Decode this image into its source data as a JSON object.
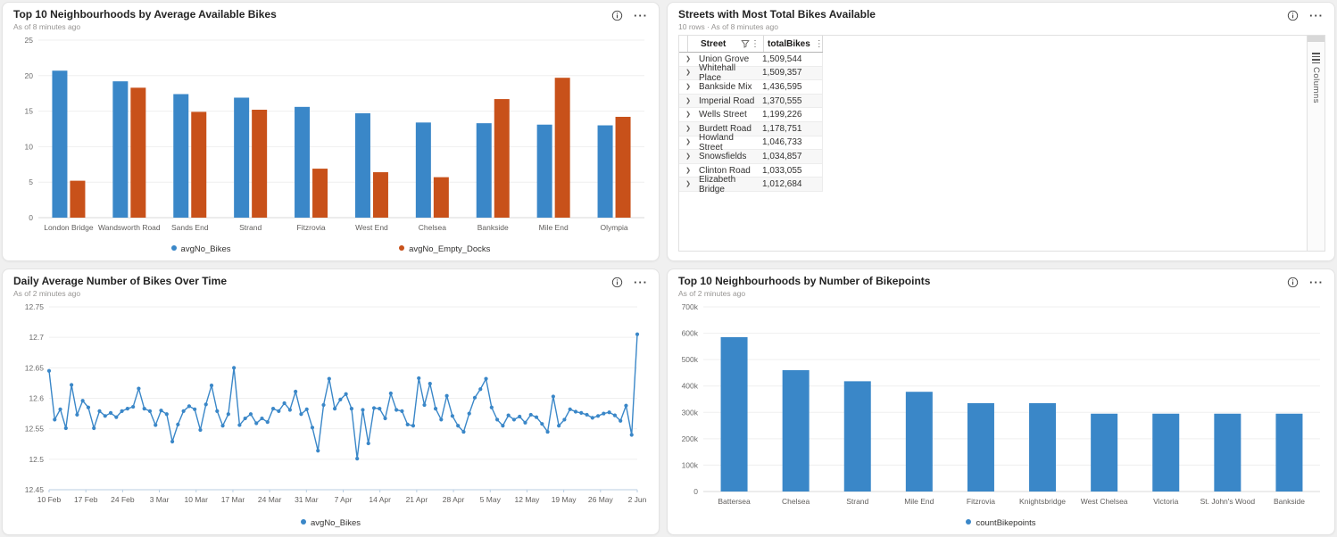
{
  "panels": {
    "top_left": {
      "title": "Top 10 Neighbourhoods by Average Available Bikes",
      "subtitle": "As of 8 minutes ago"
    },
    "top_right": {
      "title": "Streets with Most Total Bikes Available",
      "subtitle": "10 rows · As of 8 minutes ago",
      "table": {
        "columns": [
          "Street",
          "totalBikes"
        ],
        "rows": [
          [
            "Union Grove",
            "1,509,544"
          ],
          [
            "Whitehall Place",
            "1,509,357"
          ],
          [
            "Bankside Mix",
            "1,436,595"
          ],
          [
            "Imperial Road",
            "1,370,555"
          ],
          [
            "Wells Street",
            "1,199,226"
          ],
          [
            "Burdett Road",
            "1,178,751"
          ],
          [
            "Howland Street",
            "1,046,733"
          ],
          [
            "Snowsfields",
            "1,034,857"
          ],
          [
            "Clinton Road",
            "1,033,055"
          ],
          [
            "Elizabeth Bridge",
            "1,012,684"
          ]
        ],
        "columns_panel_label": "Columns"
      }
    },
    "bottom_left": {
      "title": "Daily Average Number of Bikes Over Time",
      "subtitle": "As of 2 minutes ago"
    },
    "bottom_right": {
      "title": "Top 10 Neighbourhoods by Number of Bikepoints",
      "subtitle": "As of 2 minutes ago"
    }
  },
  "colors": {
    "blue": "#3a87c8",
    "orange": "#c8511a"
  },
  "chart_data": [
    {
      "id": "avg-available-bikes",
      "type": "bar",
      "title": "Top 10 Neighbourhoods by Average Available Bikes",
      "categories": [
        "London Bridge",
        "Wandsworth Road",
        "Sands End",
        "Strand",
        "Fitzrovia",
        "West End",
        "Chelsea",
        "Bankside",
        "Mile End",
        "Olympia"
      ],
      "series": [
        {
          "name": "avgNo_Bikes",
          "color": "#3a87c8",
          "values": [
            20.7,
            19.2,
            17.4,
            16.9,
            15.6,
            14.7,
            13.4,
            13.3,
            13.1,
            13.0
          ]
        },
        {
          "name": "avgNo_Empty_Docks",
          "color": "#c8511a",
          "values": [
            5.2,
            18.3,
            14.9,
            15.2,
            6.9,
            6.4,
            5.7,
            16.7,
            19.7,
            14.2
          ]
        }
      ],
      "ylim": [
        0,
        25
      ],
      "yticks": [
        0,
        5,
        10,
        15,
        20,
        25
      ],
      "ytick_labels": [
        "0",
        "5",
        "10",
        "15",
        "20",
        "25"
      ],
      "grid": true,
      "legend_position": "bottom"
    },
    {
      "id": "daily-avg-bikes-over-time",
      "type": "line",
      "title": "Daily Average Number of Bikes Over Time",
      "x_ticks": [
        "10 Feb",
        "17 Feb",
        "24 Feb",
        "3 Mar",
        "10 Mar",
        "17 Mar",
        "24 Mar",
        "31 Mar",
        "7 Apr",
        "14 Apr",
        "21 Apr",
        "28 Apr",
        "5 May",
        "12 May",
        "19 May",
        "26 May",
        "2 Jun"
      ],
      "series": [
        {
          "name": "avgNo_Bikes",
          "color": "#3a87c8",
          "values": [
            12.645,
            12.565,
            12.582,
            12.551,
            12.622,
            12.573,
            12.596,
            12.585,
            12.551,
            12.579,
            12.571,
            12.576,
            12.569,
            12.579,
            12.583,
            12.586,
            12.616,
            12.583,
            12.579,
            12.556,
            12.58,
            12.574,
            12.529,
            12.557,
            12.579,
            12.587,
            12.582,
            12.548,
            12.59,
            12.621,
            12.579,
            12.555,
            12.574,
            12.65,
            12.556,
            12.567,
            12.574,
            12.559,
            12.567,
            12.561,
            12.583,
            12.579,
            12.592,
            12.581,
            12.611,
            12.574,
            12.582,
            12.552,
            12.514,
            12.589,
            12.632,
            12.583,
            12.598,
            12.607,
            12.583,
            12.501,
            12.581,
            12.526,
            12.584,
            12.583,
            12.567,
            12.608,
            12.581,
            12.579,
            12.557,
            12.555,
            12.633,
            12.589,
            12.624,
            12.583,
            12.565,
            12.604,
            12.571,
            12.555,
            12.545,
            12.575,
            12.601,
            12.615,
            12.632,
            12.585,
            12.565,
            12.555,
            12.572,
            12.565,
            12.57,
            12.56,
            12.573,
            12.569,
            12.558,
            12.545,
            12.603,
            12.555,
            12.565,
            12.582,
            12.578,
            12.576,
            12.573,
            12.568,
            12.571,
            12.575,
            12.577,
            12.572,
            12.563,
            12.588,
            12.54,
            12.705
          ]
        }
      ],
      "ylim": [
        12.45,
        12.75
      ],
      "yticks": [
        12.45,
        12.5,
        12.55,
        12.6,
        12.65,
        12.7,
        12.75
      ],
      "ytick_labels": [
        "12.45",
        "12.5",
        "12.55",
        "12.6",
        "12.65",
        "12.7",
        "12.75"
      ],
      "grid": true,
      "legend_position": "bottom"
    },
    {
      "id": "bikepoints-by-neighbourhood",
      "type": "bar",
      "title": "Top 10 Neighbourhoods by Number of Bikepoints",
      "categories": [
        "Battersea",
        "Chelsea",
        "Strand",
        "Mile End",
        "Fitzrovia",
        "Knightsbridge",
        "West Chelsea",
        "Victoria",
        "St. John's Wood",
        "Bankside"
      ],
      "series": [
        {
          "name": "countBikepoints",
          "color": "#3a87c8",
          "values": [
            585000,
            460000,
            418000,
            378000,
            335000,
            335000,
            295000,
            295000,
            295000,
            295000
          ]
        }
      ],
      "ylim": [
        0,
        700000
      ],
      "yticks": [
        0,
        100000,
        200000,
        300000,
        400000,
        500000,
        600000,
        700000
      ],
      "ytick_labels": [
        "0",
        "100k",
        "200k",
        "300k",
        "400k",
        "500k",
        "600k",
        "700k"
      ],
      "grid": true,
      "legend_position": "bottom"
    }
  ]
}
